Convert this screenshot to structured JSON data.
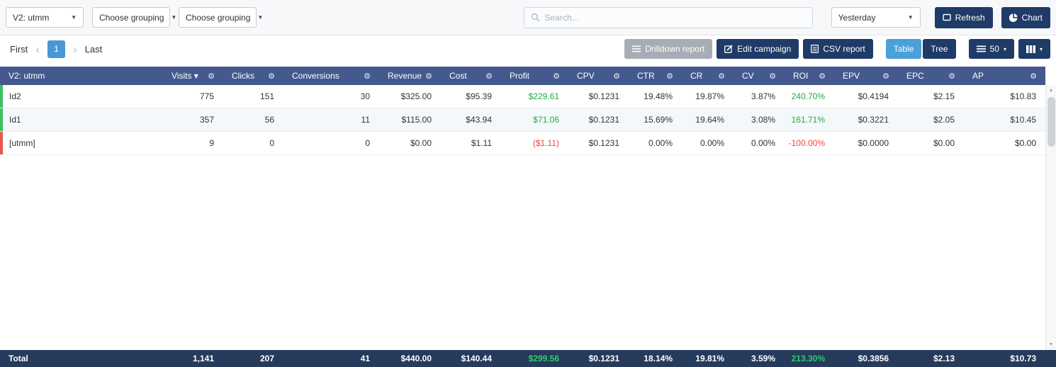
{
  "toolbar": {
    "campaign_select": "V2: utmm",
    "grouping_selects": [
      "Choose grouping",
      "Choose grouping"
    ],
    "search_placeholder": "Search...",
    "date_range": "Yesterday",
    "refresh_label": "Refresh",
    "chart_label": "Chart"
  },
  "pagination": {
    "first_label": "First",
    "current_page": "1",
    "last_label": "Last"
  },
  "actions": {
    "drilldown_label": "Drilldown report",
    "edit_campaign_label": "Edit campaign",
    "csv_label": "CSV report",
    "table_label": "Table",
    "tree_label": "Tree",
    "page_size": "50"
  },
  "table": {
    "first_column_header": "V2: utmm",
    "sorted_column": "Visits",
    "columns": [
      "Visits",
      "Clicks",
      "Conversions",
      "Revenue",
      "Cost",
      "Profit",
      "CPV",
      "CTR",
      "CR",
      "CV",
      "ROI",
      "EPV",
      "EPC",
      "AP"
    ],
    "rows": [
      {
        "status": "positive",
        "name": "Id2",
        "cells": [
          "775",
          "151",
          "30",
          "$325.00",
          "$95.39",
          "$229.61",
          "$0.1231",
          "19.48%",
          "19.87%",
          "3.87%",
          "240.70%",
          "$0.4194",
          "$2.15",
          "$10.83"
        ]
      },
      {
        "status": "positive",
        "name": "Id1",
        "cells": [
          "357",
          "56",
          "11",
          "$115.00",
          "$43.94",
          "$71.06",
          "$0.1231",
          "15.69%",
          "19.64%",
          "3.08%",
          "161.71%",
          "$0.3221",
          "$2.05",
          "$10.45"
        ]
      },
      {
        "status": "negative",
        "name": "[utmm]",
        "cells": [
          "9",
          "0",
          "0",
          "$0.00",
          "$1.11",
          "($1.11)",
          "$0.1231",
          "0.00%",
          "0.00%",
          "0.00%",
          "-100.00%",
          "$0.0000",
          "$0.00",
          "$0.00"
        ]
      }
    ],
    "total": {
      "label": "Total",
      "cells": [
        "1,141",
        "207",
        "41",
        "$440.00",
        "$140.44",
        "$299.56",
        "$0.1231",
        "18.14%",
        "19.81%",
        "3.59%",
        "213.30%",
        "$0.3856",
        "$2.13",
        "$10.73"
      ]
    }
  },
  "colors": {
    "positive": "#28a745",
    "negative": "#e8473f",
    "footer_positive": "#2ecc71",
    "status_positive": "#3fbf5f",
    "status_negative": "#e8574f",
    "accent_navy": "#1f3b67",
    "header_blue": "#44598e",
    "footer_navy": "#263a5c",
    "active_page_blue": "#4a97d7"
  }
}
